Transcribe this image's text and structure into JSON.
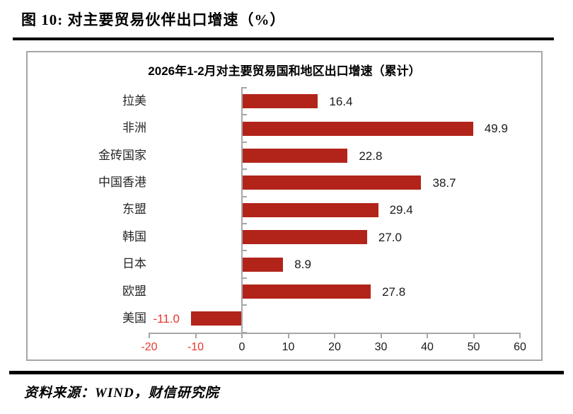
{
  "header": {
    "title": "图 10:  对主要贸易伙伴出口增速（%）"
  },
  "footer": {
    "source": "资料来源：WIND，财信研究院"
  },
  "chart_data": {
    "type": "bar",
    "orientation": "horizontal",
    "title": "2026年1-2月对主要贸易国和地区出口增速（累计）",
    "categories": [
      "拉美",
      "非洲",
      "金砖国家",
      "中国香港",
      "东盟",
      "韩国",
      "日本",
      "欧盟",
      "美国"
    ],
    "values": [
      16.4,
      49.9,
      22.8,
      38.7,
      29.4,
      27.0,
      8.9,
      27.8,
      -11.0
    ],
    "value_labels": [
      "16.4",
      "49.9",
      "22.8",
      "38.7",
      "29.4",
      "27.0",
      "8.9",
      "27.8",
      "-11.0"
    ],
    "xlim": [
      -20,
      60
    ],
    "x_ticks": [
      -20,
      -10,
      0,
      10,
      20,
      30,
      40,
      50,
      60
    ],
    "grid": false,
    "legend": null,
    "colors": {
      "bar": "#b2241a",
      "negative_label": "#e8372c",
      "axis": "#a6a6a6",
      "text": "#1a1a1a"
    }
  }
}
